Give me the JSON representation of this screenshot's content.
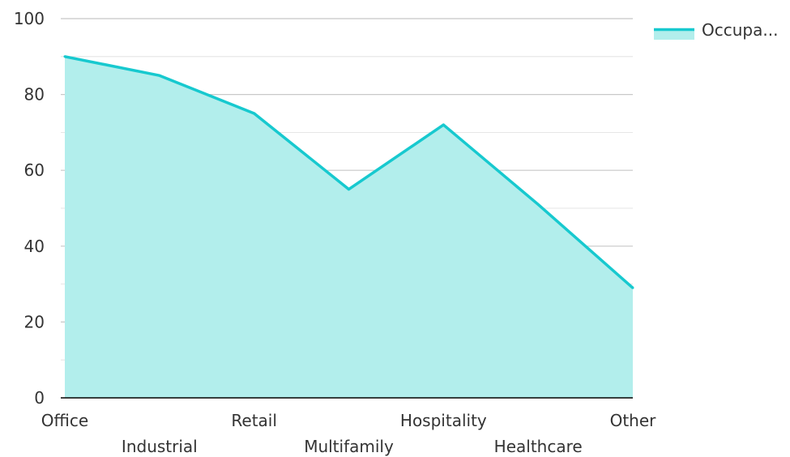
{
  "chart_data": {
    "type": "area",
    "categories": [
      "Office",
      "Industrial",
      "Retail",
      "Multifamily",
      "Hospitality",
      "Healthcare",
      "Other"
    ],
    "series": [
      {
        "name": "Occupa...",
        "values": [
          90,
          85,
          75,
          55,
          72,
          51,
          29
        ]
      }
    ],
    "y_ticks": [
      "0",
      "20",
      "40",
      "60",
      "80",
      "100"
    ],
    "ylim": [
      0,
      100
    ],
    "grid": true,
    "legend_position": "top-right",
    "colors": {
      "line": "#17C9CF",
      "fill": "#B2EEEC",
      "grid": "#C8C8C8",
      "axis": "#000000"
    }
  }
}
